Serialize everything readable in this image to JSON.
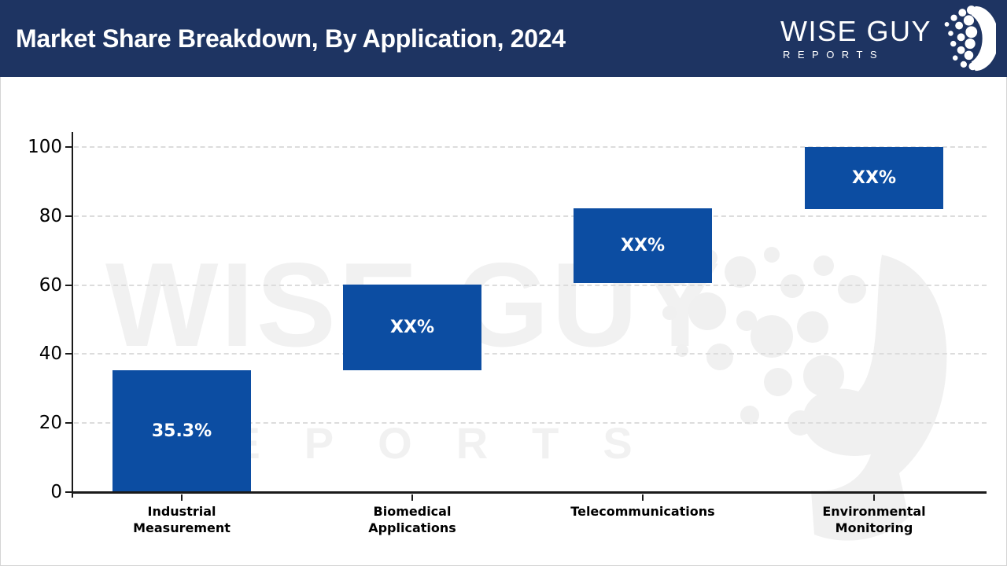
{
  "header": {
    "title": "Market Share Breakdown, By Application, 2024",
    "logo_line1": "WISE GUY",
    "logo_line2": "REPORTS"
  },
  "watermark": {
    "line1": "WISE GUY",
    "line2": "REPORTS"
  },
  "colors": {
    "header_bg": "#1e3462",
    "bar": "#0c4da2",
    "bar_label": "#ffffff",
    "grid": "#dcdcdc",
    "axis": "#1a1a1a",
    "watermark": "#f1f1f1"
  },
  "chart_data": {
    "type": "bar",
    "subtype": "floating-segment-waterfall",
    "title": "Market Share Breakdown, By Application, 2024",
    "categories": [
      "Industrial Measurement",
      "Biomedical Applications",
      "Telecommunications",
      "Environmental Monitoring"
    ],
    "category_lines": [
      [
        "Industrial",
        "Measurement"
      ],
      [
        "Biomedical",
        "Applications"
      ],
      [
        "Telecommunications"
      ],
      [
        "Environmental",
        "Monitoring"
      ]
    ],
    "segments": [
      {
        "category": "Industrial Measurement",
        "start": 0,
        "end": 35.3,
        "label": "35.3%"
      },
      {
        "category": "Biomedical Applications",
        "start": 35.3,
        "end": 60.2,
        "label": "XX%"
      },
      {
        "category": "Telecommunications",
        "start": 60.5,
        "end": 82.2,
        "label": "XX%"
      },
      {
        "category": "Environmental Monitoring",
        "start": 82.1,
        "end": 100,
        "label": "XX%"
      }
    ],
    "xlabel": "",
    "ylabel": "",
    "yticks": [
      0,
      20,
      40,
      60,
      80,
      100
    ],
    "ylim": [
      0,
      104
    ],
    "grid": "horizontal-dashed",
    "legend": "none"
  }
}
